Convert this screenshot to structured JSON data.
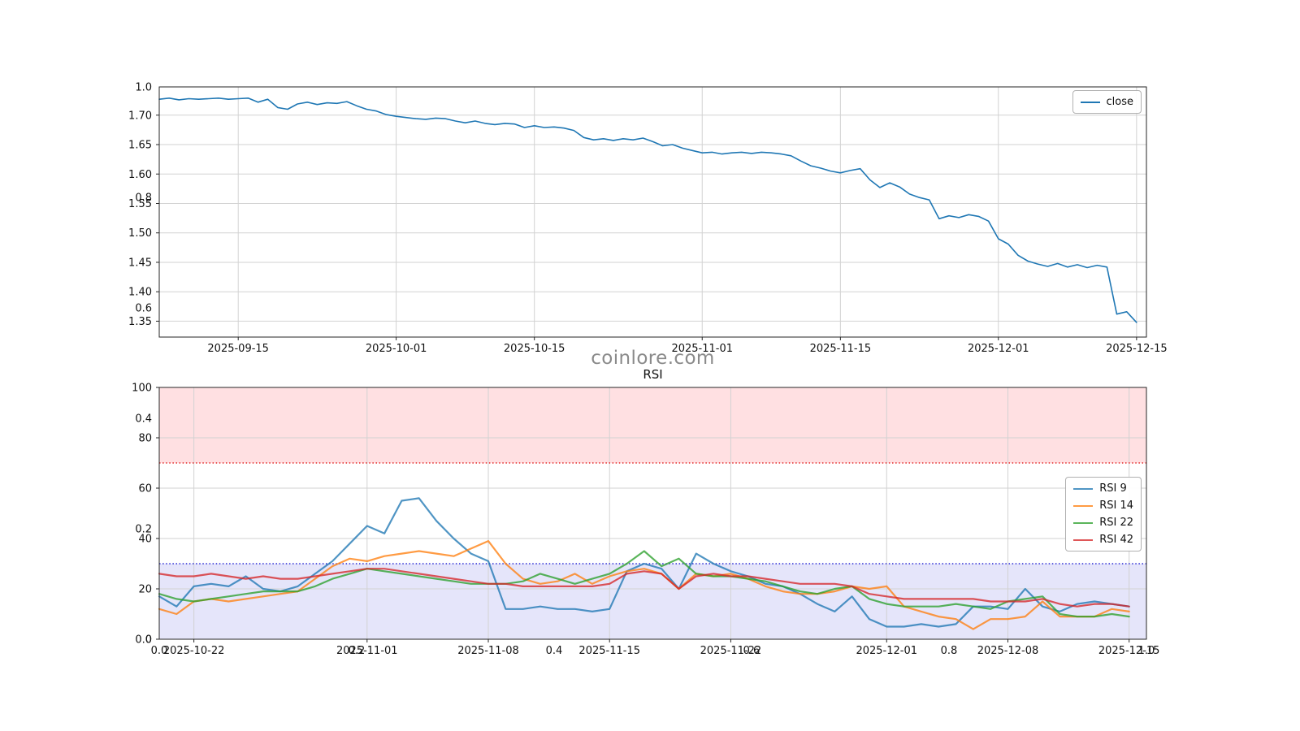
{
  "watermark": "coinlore.com",
  "phantom_axis": {
    "y_labels": [
      "1.0",
      "0.8",
      "0.6",
      "0.4",
      "0.2",
      "0.0"
    ],
    "x_labels": [
      "0.0",
      "0.2",
      "0.4",
      "0.6",
      "0.8",
      "1.0"
    ]
  },
  "chart_data": [
    {
      "type": "line",
      "name": "price-panel",
      "title": "",
      "legend": [
        "close"
      ],
      "x_start": "2025-09-07",
      "x_end": "2025-12-16",
      "x_tick_dates": [
        "2025-09-15",
        "2025-10-01",
        "2025-10-15",
        "2025-11-01",
        "2025-11-15",
        "2025-12-01",
        "2025-12-15"
      ],
      "x_tick_labels": [
        "2025-09-15",
        "2025-10-01",
        "2025-10-15",
        "2025-11-01",
        "2025-11-15",
        "2025-12-01",
        "2025-12-15"
      ],
      "y_tick_values": [
        1.7,
        1.65,
        1.6,
        1.55,
        1.5,
        1.45,
        1.4,
        1.35
      ],
      "y_tick_labels": [
        "1.70",
        "1.65",
        "1.60",
        "1.55",
        "1.50",
        "1.45",
        "1.40",
        "1.35"
      ],
      "ylim": [
        1.323,
        1.748
      ],
      "grid": true,
      "legend_position": "upper right",
      "series": [
        {
          "name": "close",
          "color": "#1f77b4",
          "width": 1.6,
          "opacity": 1,
          "values": [
            1.727,
            1.729,
            1.726,
            1.728,
            1.727,
            1.728,
            1.729,
            1.727,
            1.728,
            1.729,
            1.722,
            1.727,
            1.713,
            1.71,
            1.719,
            1.722,
            1.718,
            1.721,
            1.72,
            1.723,
            1.716,
            1.71,
            1.707,
            1.701,
            1.698,
            1.696,
            1.694,
            1.693,
            1.695,
            1.694,
            1.69,
            1.687,
            1.69,
            1.686,
            1.684,
            1.686,
            1.685,
            1.679,
            1.682,
            1.679,
            1.68,
            1.678,
            1.674,
            1.662,
            1.658,
            1.66,
            1.657,
            1.66,
            1.658,
            1.661,
            1.655,
            1.648,
            1.65,
            1.644,
            1.64,
            1.636,
            1.637,
            1.634,
            1.636,
            1.637,
            1.635,
            1.637,
            1.636,
            1.634,
            1.631,
            1.622,
            1.614,
            1.61,
            1.605,
            1.602,
            1.606,
            1.609,
            1.59,
            1.577,
            1.585,
            1.578,
            1.566,
            1.56,
            1.556,
            1.524,
            1.529,
            1.526,
            1.531,
            1.528,
            1.52,
            1.49,
            1.481,
            1.462,
            1.452,
            1.447,
            1.443,
            1.448,
            1.442,
            1.446,
            1.441,
            1.445,
            1.442,
            1.362,
            1.366,
            1.348
          ]
        }
      ]
    },
    {
      "type": "line",
      "name": "rsi-panel",
      "title": "RSI",
      "legend": [
        "RSI 9",
        "RSI 14",
        "RSI 22",
        "RSI 42"
      ],
      "x_start": "2025-10-20",
      "x_end": "2025-12-16",
      "x_tick_dates": [
        "2025-10-22",
        "2025-11-01",
        "2025-11-08",
        "2025-11-15",
        "2025-11-22",
        "2025-12-01",
        "2025-12-08",
        "2025-12-15"
      ],
      "x_tick_labels": [
        "2025-10-22",
        "2025-11-01",
        "2025-11-08",
        "2025-11-15",
        "2025-11-22",
        "2025-12-01",
        "2025-12-08",
        "2025-12-15"
      ],
      "y_tick_values": [
        100,
        80,
        60,
        40,
        20,
        0
      ],
      "y_tick_labels": [
        "100",
        "80",
        "60",
        "40",
        "20",
        "0"
      ],
      "ylim": [
        0,
        100
      ],
      "grid": true,
      "legend_position": "right",
      "bands": [
        {
          "name": "overbought-band",
          "y1": 70,
          "y2": 100,
          "color": "rgba(255,70,85,0.17)"
        },
        {
          "name": "oversold-band",
          "y1": 0,
          "y2": 30,
          "color": "rgba(80,80,220,0.15)"
        }
      ],
      "hlines": [
        {
          "name": "overbought-threshold-line",
          "y": 70,
          "color": "#dd0000",
          "style": "dotted"
        },
        {
          "name": "oversold-threshold-line",
          "y": 30,
          "color": "#0000cc",
          "style": "dotted"
        }
      ],
      "series": [
        {
          "name": "RSI 9",
          "color": "#1f77b4",
          "width": 2.2,
          "opacity": 0.78,
          "values": [
            17,
            13,
            21,
            22,
            21,
            25,
            20,
            19,
            21,
            26,
            31,
            38,
            45,
            42,
            55,
            56,
            47,
            40,
            34,
            31,
            12,
            12,
            13,
            12,
            12,
            11,
            12,
            27,
            30,
            28,
            20,
            34,
            30,
            27,
            25,
            22,
            21,
            18,
            14,
            11,
            17,
            8,
            5,
            5,
            6,
            5,
            6,
            13,
            13,
            12,
            20,
            13,
            11,
            14,
            15,
            14,
            13
          ]
        },
        {
          "name": "RSI 14",
          "color": "#ff7f0e",
          "width": 2.2,
          "opacity": 0.78,
          "values": [
            12,
            10,
            15,
            16,
            15,
            16,
            17,
            18,
            19,
            24,
            29,
            32,
            31,
            33,
            34,
            35,
            34,
            33,
            36,
            39,
            30,
            24,
            22,
            23,
            26,
            22,
            25,
            27,
            28,
            26,
            20,
            26,
            25,
            26,
            24,
            21,
            19,
            18,
            18,
            19,
            21,
            20,
            21,
            13,
            11,
            9,
            8,
            4,
            8,
            8,
            9,
            15,
            9,
            9,
            9,
            12,
            11
          ]
        },
        {
          "name": "RSI 22",
          "color": "#2ca02c",
          "width": 2.2,
          "opacity": 0.78,
          "values": [
            18,
            16,
            15,
            16,
            17,
            18,
            19,
            19,
            19,
            21,
            24,
            26,
            28,
            27,
            26,
            25,
            24,
            23,
            22,
            22,
            22,
            23,
            26,
            24,
            22,
            24,
            26,
            30,
            35,
            29,
            32,
            26,
            25,
            25,
            24,
            23,
            21,
            19,
            18,
            20,
            21,
            16,
            14,
            13,
            13,
            13,
            14,
            13,
            12,
            15,
            16,
            17,
            10,
            9,
            9,
            10,
            9
          ]
        },
        {
          "name": "RSI 42",
          "color": "#d62728",
          "width": 2.2,
          "opacity": 0.78,
          "values": [
            26,
            25,
            25,
            26,
            25,
            24,
            25,
            24,
            24,
            25,
            26,
            27,
            28,
            28,
            27,
            26,
            25,
            24,
            23,
            22,
            22,
            21,
            21,
            21,
            21,
            21,
            22,
            26,
            27,
            26,
            20,
            25,
            26,
            25,
            25,
            24,
            23,
            22,
            22,
            22,
            21,
            18,
            17,
            16,
            16,
            16,
            16,
            16,
            15,
            15,
            15,
            16,
            14,
            13,
            14,
            14,
            13
          ]
        }
      ]
    }
  ]
}
